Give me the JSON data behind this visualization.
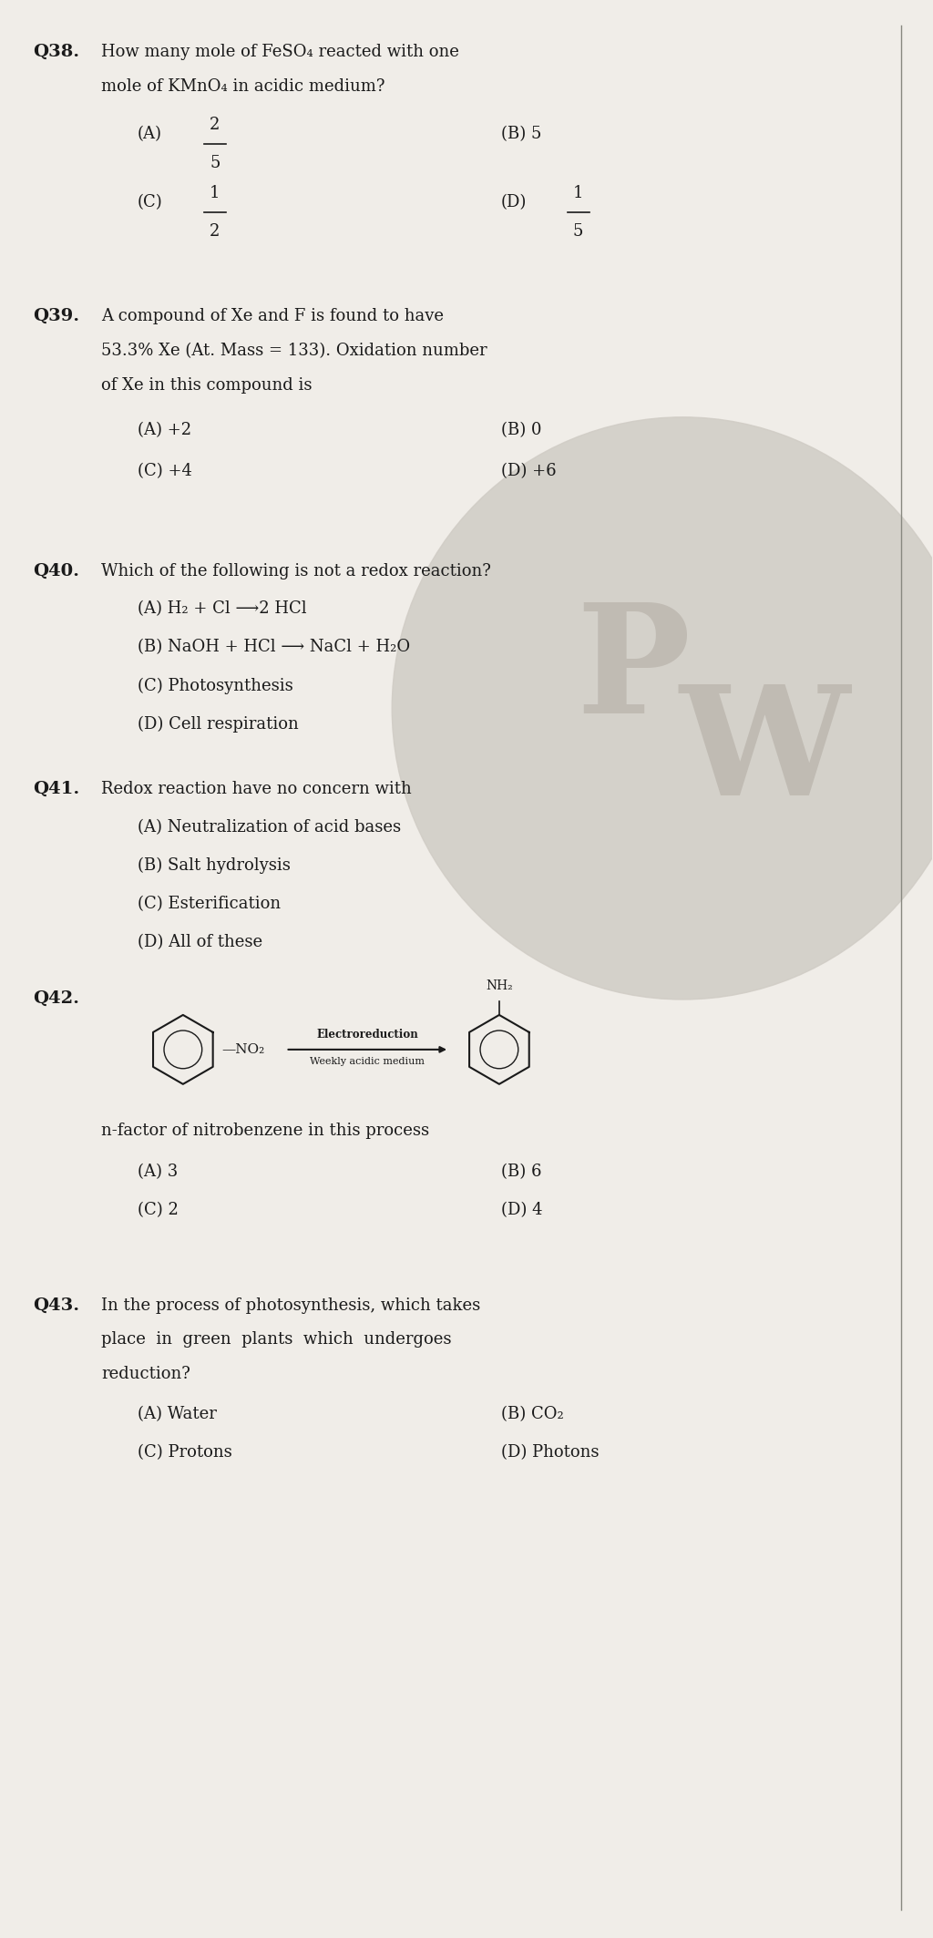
{
  "bg_color": "#f0ede8",
  "text_color": "#1a1a1a",
  "title_color": "#000000",
  "watermark_color": "#d0ccc5",
  "questions": [
    {
      "id": "Q38",
      "question": "How many mole of FeSO₄ reacted with one\nmole of KMnO₄ in acidic medium?",
      "options": [
        {
          "label": "(A)",
          "text": "2/5",
          "is_fraction": true,
          "num": "2",
          "den": "5"
        },
        {
          "label": "(B)",
          "text": "5",
          "is_fraction": false
        },
        {
          "label": "(C)",
          "text": "1/2",
          "is_fraction": true,
          "num": "1",
          "den": "2"
        },
        {
          "label": "(D)",
          "text": "1/5",
          "is_fraction": true,
          "num": "1",
          "den": "5"
        }
      ]
    },
    {
      "id": "Q39",
      "question": "A compound of Xe and F is found to have\n53.3% Xe (At. Mass = 133). Oxidation number\nof Xe in this compound is",
      "options": [
        {
          "label": "(A)",
          "text": "+2",
          "is_fraction": false
        },
        {
          "label": "(B)",
          "text": "0",
          "is_fraction": false
        },
        {
          "label": "(C)",
          "text": "+4",
          "is_fraction": false
        },
        {
          "label": "(D)",
          "text": "+6",
          "is_fraction": false
        }
      ]
    },
    {
      "id": "Q40",
      "question": "Which of the following is not a redox reaction?",
      "options_list": [
        "(A) H₂ + Cl ⟶2 HCl",
        "(B) NaOH + HCl ⟶ NaCl + H₂O",
        "(C) Photosynthesis",
        "(D) Cell respiration"
      ]
    },
    {
      "id": "Q41",
      "question": "Redox reaction have no concern with",
      "options_list": [
        "(A) Neutralization of acid bases",
        "(B) Salt hydrolysis",
        "(C) Esterification",
        "(D) All of these"
      ]
    },
    {
      "id": "Q42",
      "has_diagram": true,
      "post_text": "n-factor of nitrobenzene in this process",
      "options": [
        {
          "label": "(A)",
          "text": "3"
        },
        {
          "label": "(B)",
          "text": "6"
        },
        {
          "label": "(C)",
          "text": "2"
        },
        {
          "label": "(D)",
          "text": "4"
        }
      ]
    },
    {
      "id": "Q43",
      "question": "In the process of photosynthesis, which takes\nplace  in  green  plants  which  undergoes\nreduction?",
      "options": [
        {
          "label": "(A)",
          "text": "Water"
        },
        {
          "label": "(B)",
          "text": "CO₂"
        },
        {
          "label": "(C)",
          "text": "Protons"
        },
        {
          "label": "(D)",
          "text": "Photons"
        }
      ]
    }
  ]
}
